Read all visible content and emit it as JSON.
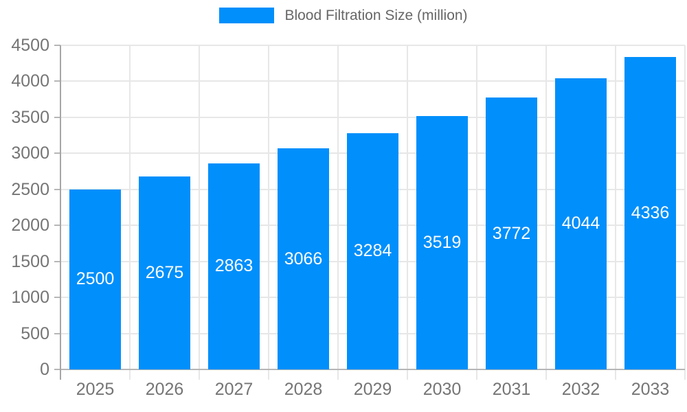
{
  "legend": {
    "label": "Blood Filtration Size (million)"
  },
  "chart_data": {
    "type": "bar",
    "title": "",
    "xlabel": "",
    "ylabel": "",
    "categories": [
      "2025",
      "2026",
      "2027",
      "2028",
      "2029",
      "2030",
      "2031",
      "2032",
      "2033"
    ],
    "series": [
      {
        "name": "Blood Filtration Size (million)",
        "values": [
          2500,
          2675,
          2863,
          3066,
          3284,
          3519,
          3772,
          4044,
          4336
        ],
        "color": "#008FFB"
      }
    ],
    "ylim": [
      0,
      4500
    ],
    "ytick_step": 500,
    "ytick_labels": [
      "0",
      "500",
      "1000",
      "1500",
      "2000",
      "2500",
      "3000",
      "3500",
      "4000",
      "4500"
    ],
    "grid": true,
    "legend_position": "top",
    "value_labels": "inside-center",
    "value_label_color": "#FFFFFF",
    "axis_label_color": "#757575",
    "legend_label_color": "#666666",
    "gridline_color": "#E7E7E7",
    "axis_line_color": "#A6A6A6",
    "tick_color": "#B6B6B6"
  }
}
